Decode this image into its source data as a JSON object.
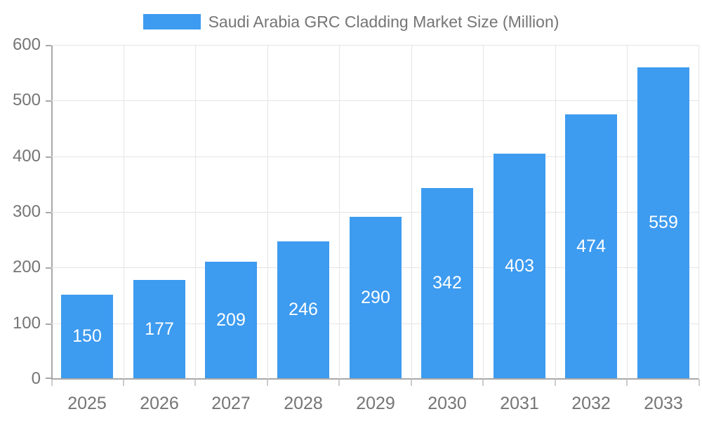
{
  "legend": {
    "label": "Saudi Arabia GRC Cladding Market Size (Million)"
  },
  "chart_data": {
    "type": "bar",
    "title": "Saudi Arabia GRC Cladding Market Size (Million)",
    "categories": [
      "2025",
      "2026",
      "2027",
      "2028",
      "2029",
      "2030",
      "2031",
      "2032",
      "2033"
    ],
    "values": [
      150,
      177,
      209,
      246,
      290,
      342,
      403,
      474,
      559
    ],
    "value_labels": [
      "150",
      "177",
      "209",
      "246",
      "290",
      "342",
      "403",
      "474",
      "559"
    ],
    "xlabel": "",
    "ylabel": "",
    "ylim": [
      0,
      600
    ],
    "ytick_interval": 100,
    "ytick_labels": [
      "0",
      "100",
      "200",
      "300",
      "400",
      "500",
      "600"
    ],
    "grid": true,
    "legend_position": "top",
    "colors": {
      "bar": "#3D9BF0",
      "value_label": "#FFFFFF",
      "axis_text": "#757575",
      "grid_line": "#E5E5E5",
      "axis_line": "#A8A8A8",
      "tick_line": "#CCCCCC",
      "background": "#FFFFFF"
    }
  }
}
